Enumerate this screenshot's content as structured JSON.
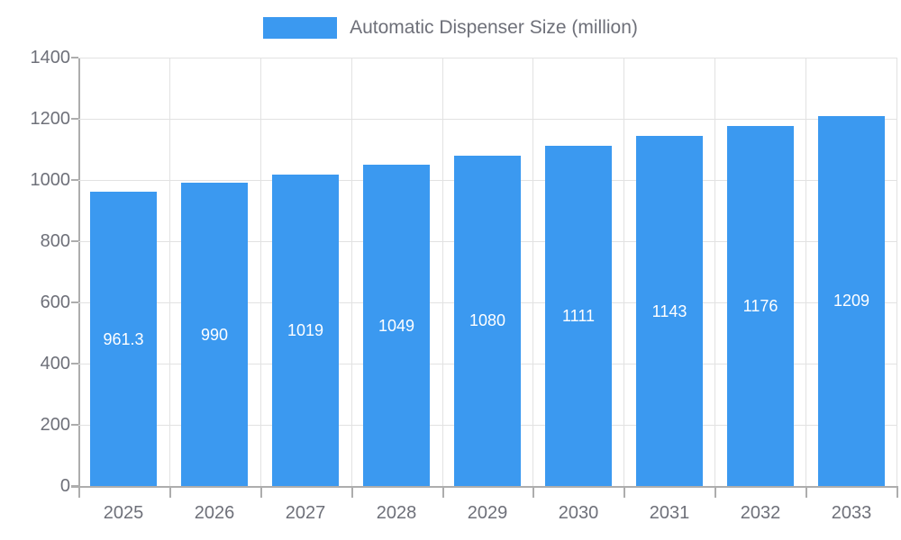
{
  "legend": {
    "label": "Automatic Dispenser Size (million)"
  },
  "chart_data": {
    "type": "bar",
    "title": "",
    "categories": [
      "2025",
      "2026",
      "2027",
      "2028",
      "2029",
      "2030",
      "2031",
      "2032",
      "2033"
    ],
    "series": [
      {
        "name": "Automatic Dispenser Size (million)",
        "values": [
          961.3,
          990,
          1019,
          1049,
          1080,
          1111,
          1143,
          1176,
          1209
        ]
      }
    ],
    "bar_labels": [
      "961.3",
      "990",
      "1019",
      "1049",
      "1080",
      "1111",
      "1143",
      "1176",
      "1209"
    ],
    "xlabel": "",
    "ylabel": "",
    "ylim": [
      0,
      1400
    ],
    "yticks": [
      0,
      200,
      400,
      600,
      800,
      1000,
      1200,
      1400
    ],
    "grid": true,
    "legend_position": "top-center",
    "colors": {
      "bar": "#3b99f0",
      "grid": "#e2e2e2",
      "axis": "#adadad",
      "axis_text": "#6e7079",
      "bar_label_text": "#ffffff"
    }
  }
}
